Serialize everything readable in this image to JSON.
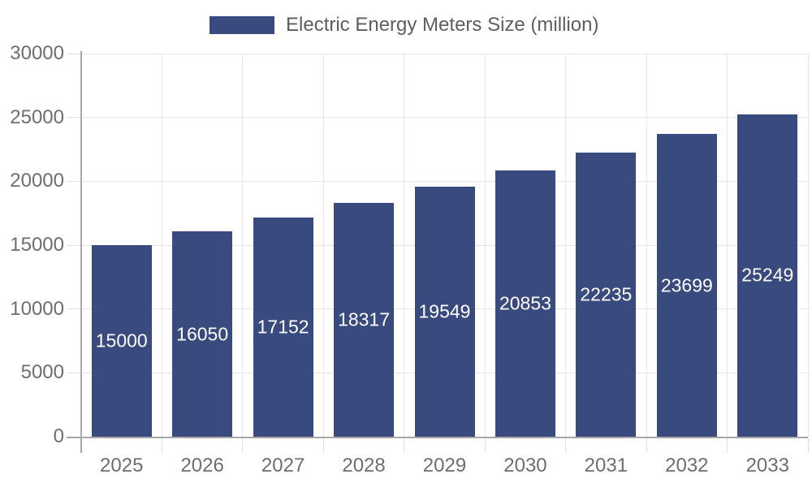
{
  "legend": {
    "label": "Electric Energy Meters Size (million)"
  },
  "chart_data": {
    "type": "bar",
    "title": "Electric Energy Meters Size (million)",
    "categories": [
      "2025",
      "2026",
      "2027",
      "2028",
      "2029",
      "2030",
      "2031",
      "2032",
      "2033"
    ],
    "values": [
      15000,
      16050,
      17152,
      18317,
      19549,
      20853,
      22235,
      23699,
      25249
    ],
    "series": [
      {
        "name": "Electric Energy Meters Size (million)",
        "values": [
          15000,
          16050,
          17152,
          18317,
          19549,
          20853,
          22235,
          23699,
          25249
        ]
      }
    ],
    "xlabel": "",
    "ylabel": "",
    "ylim": [
      0,
      30000
    ],
    "yticks": [
      0,
      5000,
      10000,
      15000,
      20000,
      25000,
      30000
    ],
    "grid": true,
    "legend_position": "top",
    "value_label_position": "inside-center"
  },
  "colors": {
    "bar": "#394A7E",
    "value_label": "#FFFFFF",
    "axis_text": "#6E6E6E",
    "legend_text": "#5E5E5E",
    "grid_line": "#E6E6E6",
    "tick_line": "#E0E0E0",
    "axis_line": "#A8A8A8",
    "background": "#FFFFFF"
  }
}
